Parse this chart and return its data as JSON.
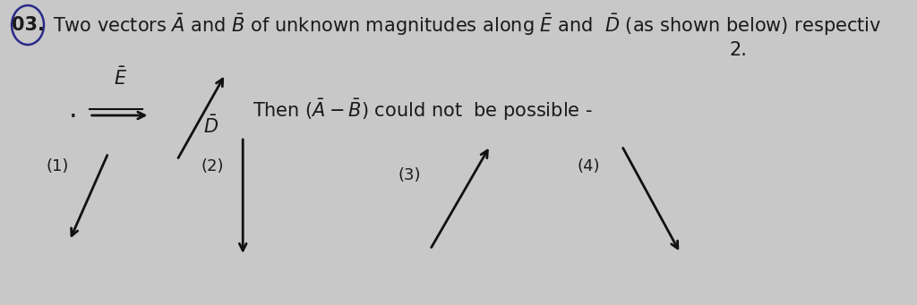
{
  "bg_color": "#c8c8c8",
  "circle_color": "#2a2a8a",
  "text_color": "#1a1a1a",
  "arrow_color": "#111111",
  "title_text": "Two vectors $\\bar{A}$ and $\\bar{B}$ of unknown magnitudes along $\\bar{E}$ and  $\\bar{D}$ (as shown below) respectiv",
  "question_num": "03.",
  "subtitle_text": "Then $(\\bar{A}-\\bar{B})$ could not  be possible -",
  "e_label": "$\\bar{E}$",
  "d_label": "$\\bar{D}$",
  "option_labels": [
    "(1)",
    "(2)",
    "(3)",
    "(4)"
  ],
  "font_size_title": 15,
  "font_size_body": 14,
  "font_size_option": 13,
  "two_label": "2.",
  "bullet": "·"
}
